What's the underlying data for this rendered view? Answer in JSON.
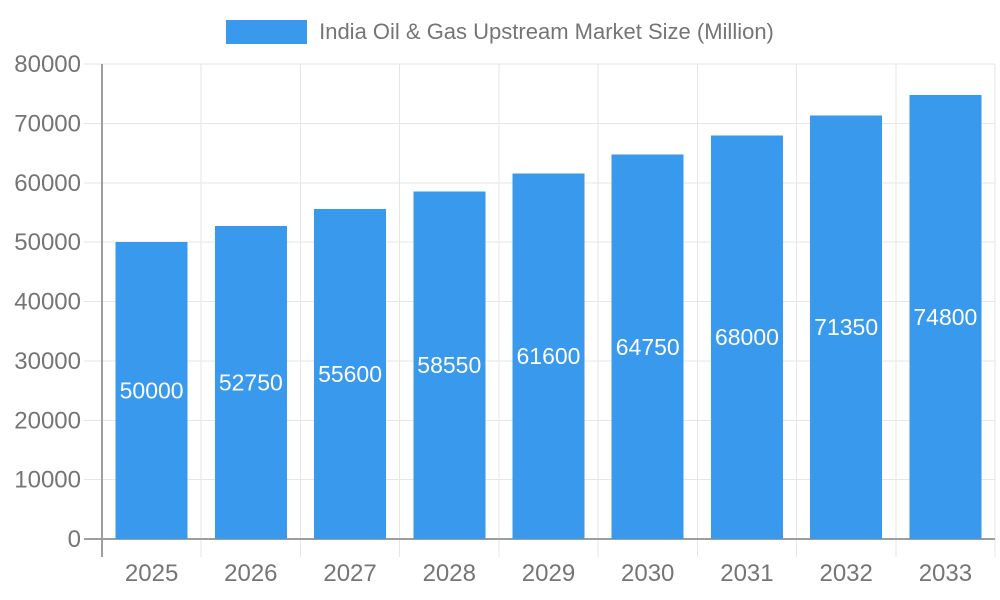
{
  "legend": {
    "label": "India Oil & Gas Upstream Market Size (Million)"
  },
  "chart_data": {
    "type": "bar",
    "title": "India Oil & Gas Upstream Market Size (Million)",
    "categories": [
      "2025",
      "2026",
      "2027",
      "2028",
      "2029",
      "2030",
      "2031",
      "2032",
      "2033"
    ],
    "values": [
      50000,
      52750,
      55600,
      58550,
      61600,
      64750,
      68000,
      71350,
      74800
    ],
    "bar_labels": [
      "50000",
      "52750",
      "55600",
      "58550",
      "61600",
      "64750",
      "68000",
      "71350",
      "74800"
    ],
    "xlabel": "",
    "ylabel": "",
    "ylim": [
      0,
      80000
    ],
    "ytick_interval": 10000,
    "ytick_labels": [
      "0",
      "10000",
      "20000",
      "30000",
      "40000",
      "50000",
      "60000",
      "70000",
      "80000"
    ],
    "grid": true,
    "legend_position": "top",
    "bar_color": "#3999EC",
    "bar_label_color": "#FFFFFF",
    "grid_color": "#E6E6E6",
    "axis_color": "#9E9E9E",
    "tick_label_color": "#757575"
  }
}
